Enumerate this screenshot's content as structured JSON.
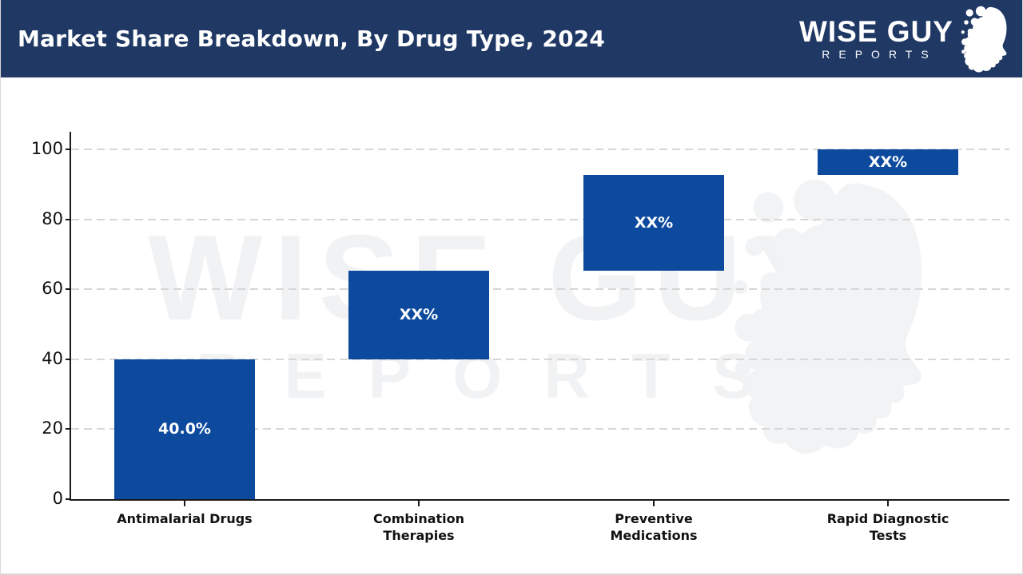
{
  "header": {
    "title": "Market Share Breakdown, By Drug Type, 2024",
    "logo": {
      "line1": "WISE GUY",
      "line2": "REPORTS"
    }
  },
  "watermark": {
    "line1": "WISE GUY",
    "line2": "REPORTS"
  },
  "colors": {
    "header_bg": "#1f3864",
    "bar_fill": "#0d4a9e",
    "gridline": "#d7d7d7",
    "axis": "#1a1a1a",
    "bar_label": "#ffffff",
    "watermark": "#f1f2f4"
  },
  "chart_data": {
    "type": "bar",
    "subtype": "floating-waterfall",
    "title": "Market Share Breakdown, By Drug Type, 2024",
    "categories": [
      "Antimalarial Drugs",
      "Combination Therapies",
      "Preventive Medications",
      "Rapid Diagnostic Tests"
    ],
    "category_label_lines": [
      [
        "Antimalarial Drugs"
      ],
      [
        "Combination",
        "Therapies"
      ],
      [
        "Preventive",
        "Medications"
      ],
      [
        "Rapid Diagnostic",
        "Tests"
      ]
    ],
    "bars": [
      {
        "category": "Antimalarial Drugs",
        "start": 0,
        "end": 40,
        "label": "40.0%"
      },
      {
        "category": "Combination Therapies",
        "start": 40,
        "end": 65.3,
        "label": "XX%"
      },
      {
        "category": "Preventive Medications",
        "start": 65.3,
        "end": 92.8,
        "label": "XX%"
      },
      {
        "category": "Rapid Diagnostic Tests",
        "start": 92.8,
        "end": 100,
        "label": "XX%"
      }
    ],
    "xlabel": "",
    "ylabel": "",
    "ylim": [
      0,
      104.5
    ],
    "yticks": [
      0,
      20,
      40,
      60,
      80,
      100
    ],
    "grid": true,
    "grid_axis": "y",
    "grid_style": "dashed",
    "legend": "none",
    "bar_color": "#0d4a9e"
  }
}
